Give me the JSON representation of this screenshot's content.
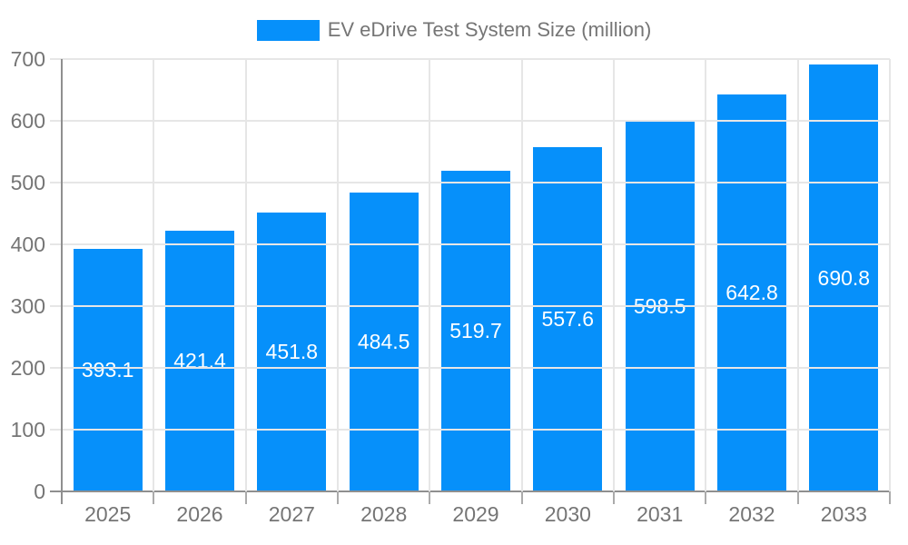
{
  "chart_data": {
    "type": "bar",
    "title": "EV eDrive Test System Size (million)",
    "legend_position": "top",
    "categories": [
      "2025",
      "2026",
      "2027",
      "2028",
      "2029",
      "2030",
      "2031",
      "2032",
      "2033"
    ],
    "series": [
      {
        "name": "EV eDrive Test System Size (million)",
        "values": [
          393.1,
          421.4,
          451.8,
          484.5,
          519.7,
          557.6,
          598.5,
          642.8,
          690.8
        ]
      }
    ],
    "value_labels": [
      "393.1",
      "421.4",
      "451.8",
      "484.5",
      "519.7",
      "557.6",
      "598.5",
      "642.8",
      "690.8"
    ],
    "xlabel": "",
    "ylabel": "",
    "ylim": [
      0,
      700
    ],
    "y_ticks": [
      0,
      100,
      200,
      300,
      400,
      500,
      600,
      700
    ],
    "grid": true,
    "colors": {
      "bar": "#0690fa",
      "bar_value_text": "#ffffff",
      "axis_text": "#757575",
      "legend_text": "#757575",
      "gridline": "#e6e6e6",
      "axis_line": "#8f8f8f",
      "minor_tick": "#ababab",
      "background": "#ffffff"
    }
  }
}
